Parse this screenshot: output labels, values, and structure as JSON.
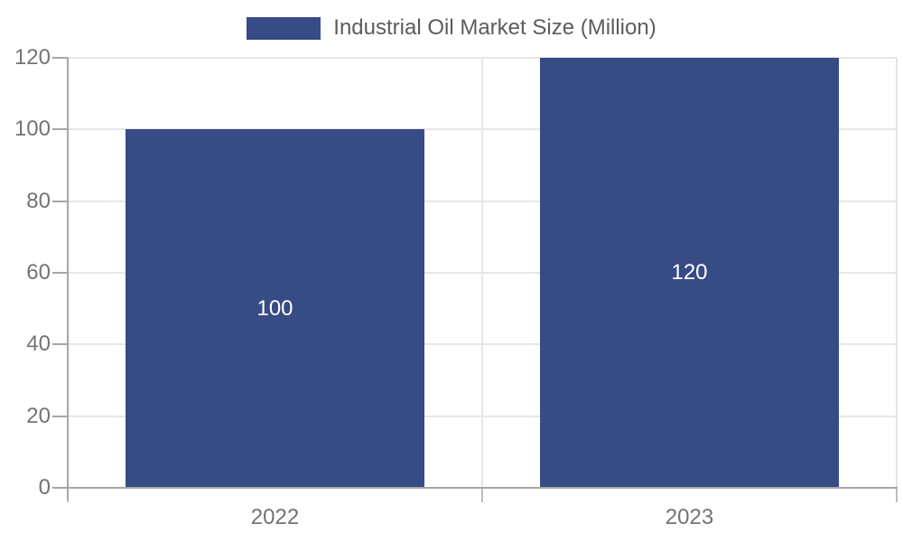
{
  "legend": {
    "label": "Industrial Oil Market Size (Million)",
    "swatch_color": "#374B85"
  },
  "chart_data": {
    "type": "bar",
    "categories": [
      "2022",
      "2023"
    ],
    "series": [
      {
        "name": "Industrial Oil Market Size (Million)",
        "values": [
          100,
          120
        ]
      }
    ],
    "data_labels": [
      "100",
      "120"
    ],
    "title": "",
    "xlabel": "",
    "ylabel": "",
    "ylim": [
      0,
      120
    ],
    "yticks": [
      0,
      20,
      40,
      60,
      80,
      100,
      120
    ],
    "grid": true,
    "legend_position": "top-center",
    "bar_color": "#374B85",
    "data_label_color": "#FFFFFF",
    "axis_label_color": "#737373",
    "gridline_color": "#E6E6E6",
    "axis_line_color": "#A6A6A6"
  }
}
